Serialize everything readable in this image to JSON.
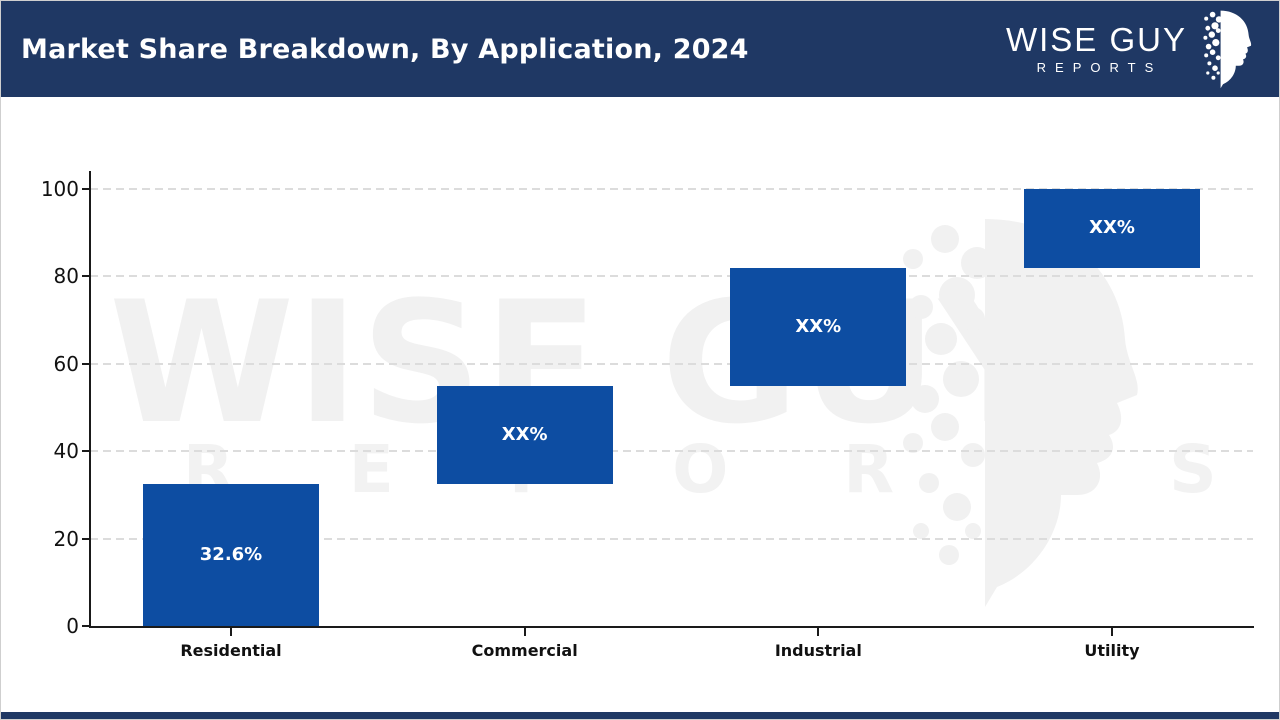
{
  "header": {
    "title": "Market Share Breakdown, By Application, 2024",
    "logo": {
      "name": "WISE GUY",
      "sub": "REPORTS"
    }
  },
  "watermark": {
    "line1": "WISE GUY",
    "line2": "R E P O R T S"
  },
  "colors": {
    "header_bg": "#1f3864",
    "footer_bg": "#1f3864",
    "bar": "#0d4da2",
    "axis": "#1a1a1a",
    "grid": "#dcdcdc",
    "watermark": "#f1f1f1",
    "bar_label": "#ffffff"
  },
  "chart_data": {
    "type": "bar",
    "subtype": "floating-waterfall",
    "title": "Market Share Breakdown, By Application, 2024",
    "categories": [
      "Residential",
      "Commercial",
      "Industrial",
      "Utility"
    ],
    "bars": [
      {
        "category": "Residential",
        "start": 0,
        "end": 32.6,
        "label": "32.6%"
      },
      {
        "category": "Commercial",
        "start": 32.6,
        "end": 55,
        "label": "XX%"
      },
      {
        "category": "Industrial",
        "start": 55,
        "end": 82,
        "label": "XX%"
      },
      {
        "category": "Utility",
        "start": 82,
        "end": 100,
        "label": "XX%"
      }
    ],
    "xlabel": "",
    "ylabel": "",
    "ylim": [
      0,
      100
    ],
    "yticks": [
      0,
      20,
      40,
      60,
      80,
      100
    ],
    "grid": "horizontal-dashed",
    "legend": "none"
  }
}
